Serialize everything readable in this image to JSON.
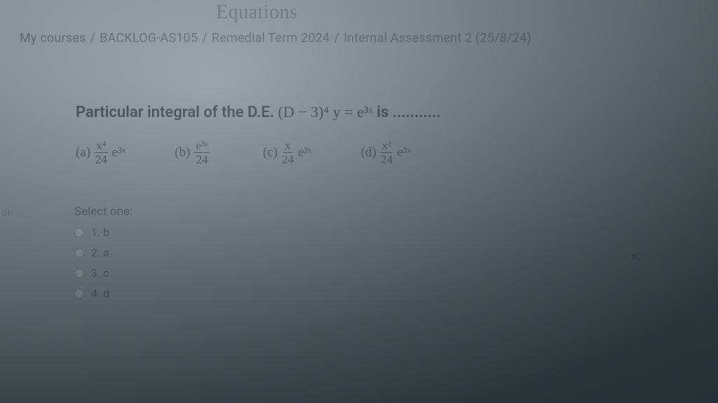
{
  "header_partial": "Equations",
  "breadcrumb": {
    "items": [
      "My courses",
      "BACKLOG-AS105",
      "Remedial Term 2024",
      "Internal Assessment 2 (25/8/24)"
    ],
    "separator": "/"
  },
  "question": {
    "stem_pre": "Particular integral of the D.E. ",
    "stem_math": "(D − 3)⁴ y = e³ˣ",
    "stem_post": " is ...........",
    "options": {
      "a": {
        "label": "(a)",
        "frac_num": "x⁴",
        "frac_den": "24",
        "tail": "e³ˣ"
      },
      "b": {
        "label": "(b)",
        "frac_num": "e³ˣ",
        "frac_den": "24",
        "tail": ""
      },
      "c": {
        "label": "(c)",
        "frac_num": "x",
        "frac_den": "24",
        "tail": "e³ˣ"
      },
      "d": {
        "label": "(d)",
        "frac_num": "x²",
        "frac_den": "24",
        "tail": "e³ˣ"
      }
    }
  },
  "side_label": "on",
  "select": {
    "title": "Select one:",
    "choices": [
      "1. b",
      "2. a",
      "3. c",
      "4. d"
    ]
  },
  "colors": {
    "bg_top": "#8a9aa5",
    "bg_bottom": "#3a4a55",
    "text_primary": "#2a3a45",
    "text_muted": "#44535e",
    "radio_border": "#55646e"
  }
}
